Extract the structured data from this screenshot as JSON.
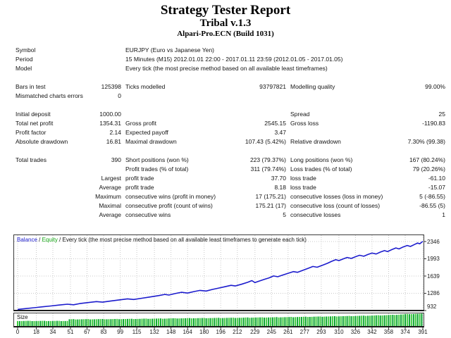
{
  "header": {
    "title": "Strategy Tester Report",
    "ea_name": "Tribal v.1.3",
    "server": "Alpari-Pro.ECN (Build 1031)"
  },
  "report": {
    "sections": [
      {
        "rows": [
          [
            "Symbol",
            "",
            "EURJPY (Euro vs Japanese Yen)",
            "",
            "",
            ""
          ],
          [
            "Period",
            "",
            "15 Minutes (M15) 2012.01.01 22:00 - 2017.01.11 23:59 (2012.01.05 - 2017.01.05)",
            "",
            "",
            ""
          ],
          [
            "Model",
            "",
            "Every tick (the most precise method based on all available least timeframes)",
            "",
            "",
            ""
          ]
        ]
      },
      {
        "rows": [
          [
            "Bars in test",
            "125398",
            "Ticks modelled",
            "93797821",
            "Modelling quality",
            "99.00%"
          ],
          [
            "Mismatched charts errors",
            "0",
            "",
            "",
            "",
            ""
          ]
        ]
      },
      {
        "rows": [
          [
            "Initial deposit",
            "1000.00",
            "",
            "",
            "Spread",
            "25"
          ],
          [
            "Total net profit",
            "1354.31",
            "Gross profit",
            "2545.15",
            "Gross loss",
            "-1190.83"
          ],
          [
            "Profit factor",
            "2.14",
            "Expected payoff",
            "3.47",
            "",
            ""
          ],
          [
            "Absolute drawdown",
            "16.81",
            "Maximal drawdown",
            "107.43 (5.42%)",
            "Relative drawdown",
            "7.30% (99.38)"
          ]
        ]
      },
      {
        "rows": [
          [
            "Total trades",
            "390",
            "Short positions (won %)",
            "223 (79.37%)",
            "Long positions (won %)",
            "167 (80.24%)"
          ],
          [
            "",
            "",
            "Profit trades (% of total)",
            "311 (79.74%)",
            "Loss trades (% of total)",
            "79 (20.26%)"
          ],
          [
            "",
            "Largest",
            "profit trade",
            "37.70",
            "loss trade",
            "-61.10"
          ],
          [
            "",
            "Average",
            "profit trade",
            "8.18",
            "loss trade",
            "-15.07"
          ],
          [
            "",
            "Maximum",
            "consecutive wins (profit in money)",
            "17 (175.21)",
            "consecutive losses (loss in money)",
            "5 (-86.55)"
          ],
          [
            "",
            "Maximal",
            "consecutive profit (count of wins)",
            "175.21 (17)",
            "consecutive loss (count of losses)",
            "-86.55 (5)"
          ],
          [
            "",
            "Average",
            "consecutive wins",
            "5",
            "consecutive losses",
            "1"
          ]
        ]
      }
    ]
  },
  "chart_data": {
    "type": "line",
    "legend": {
      "balance_label": "Balance",
      "equity_label": "Equity",
      "sep": " / ",
      "model_note": "Every tick (the most precise method based on all available least timeframes to generate each tick)"
    },
    "colors": {
      "balance_line": "#1c1ccd",
      "equity_text": "#13a513",
      "bar_light": "#3ecb3e",
      "bar_dark": "#0aa32f",
      "grid": "#c9c9c9",
      "axis_text": "#1a1a1a"
    },
    "y_axis": {
      "ticks": [
        2346,
        1993,
        1639,
        1286,
        932
      ],
      "min": 932,
      "max": 2346
    },
    "x_axis": {
      "ticks": [
        0,
        18,
        34,
        51,
        67,
        83,
        99,
        115,
        132,
        148,
        164,
        180,
        196,
        212,
        229,
        245,
        261,
        277,
        293,
        310,
        326,
        342,
        358,
        374,
        391
      ],
      "min": 0,
      "max": 391
    },
    "balance_series": [
      [
        0,
        955
      ],
      [
        8,
        972
      ],
      [
        16,
        990
      ],
      [
        24,
        1008
      ],
      [
        32,
        1026
      ],
      [
        40,
        1044
      ],
      [
        48,
        1062
      ],
      [
        54,
        1050
      ],
      [
        60,
        1075
      ],
      [
        68,
        1095
      ],
      [
        76,
        1115
      ],
      [
        82,
        1103
      ],
      [
        90,
        1128
      ],
      [
        98,
        1150
      ],
      [
        106,
        1172
      ],
      [
        112,
        1158
      ],
      [
        120,
        1185
      ],
      [
        128,
        1210
      ],
      [
        136,
        1238
      ],
      [
        142,
        1262
      ],
      [
        146,
        1250
      ],
      [
        152,
        1280
      ],
      [
        158,
        1305
      ],
      [
        164,
        1290
      ],
      [
        170,
        1320
      ],
      [
        176,
        1345
      ],
      [
        182,
        1332
      ],
      [
        188,
        1365
      ],
      [
        194,
        1392
      ],
      [
        200,
        1420
      ],
      [
        206,
        1448
      ],
      [
        210,
        1435
      ],
      [
        216,
        1470
      ],
      [
        222,
        1510
      ],
      [
        226,
        1545
      ],
      [
        229,
        1505
      ],
      [
        233,
        1535
      ],
      [
        238,
        1570
      ],
      [
        243,
        1605
      ],
      [
        247,
        1640
      ],
      [
        251,
        1625
      ],
      [
        256,
        1660
      ],
      [
        261,
        1695
      ],
      [
        266,
        1730
      ],
      [
        270,
        1715
      ],
      [
        275,
        1755
      ],
      [
        280,
        1795
      ],
      [
        285,
        1835
      ],
      [
        289,
        1820
      ],
      [
        294,
        1860
      ],
      [
        299,
        1900
      ],
      [
        303,
        1940
      ],
      [
        307,
        1975
      ],
      [
        310,
        1955
      ],
      [
        314,
        1990
      ],
      [
        318,
        2020
      ],
      [
        322,
        2000
      ],
      [
        326,
        2035
      ],
      [
        330,
        2065
      ],
      [
        334,
        2045
      ],
      [
        338,
        2080
      ],
      [
        342,
        2110
      ],
      [
        346,
        2090
      ],
      [
        350,
        2130
      ],
      [
        354,
        2160
      ],
      [
        357,
        2140
      ],
      [
        361,
        2180
      ],
      [
        365,
        2215
      ],
      [
        368,
        2195
      ],
      [
        372,
        2235
      ],
      [
        376,
        2265
      ],
      [
        379,
        2245
      ],
      [
        383,
        2285
      ],
      [
        386,
        2315
      ],
      [
        388,
        2300
      ],
      [
        391,
        2350
      ]
    ],
    "size_panel": {
      "label": "Size",
      "profile": [
        [
          0,
          0.38
        ],
        [
          48,
          0.38
        ],
        [
          49,
          0.5
        ],
        [
          96,
          0.52
        ],
        [
          130,
          0.55
        ],
        [
          160,
          0.58
        ],
        [
          192,
          0.6
        ],
        [
          224,
          0.63
        ],
        [
          256,
          0.66
        ],
        [
          288,
          0.7
        ],
        [
          310,
          0.73
        ],
        [
          330,
          0.76
        ],
        [
          350,
          0.8
        ],
        [
          365,
          0.84
        ],
        [
          378,
          0.9
        ],
        [
          391,
          0.92
        ]
      ]
    }
  }
}
